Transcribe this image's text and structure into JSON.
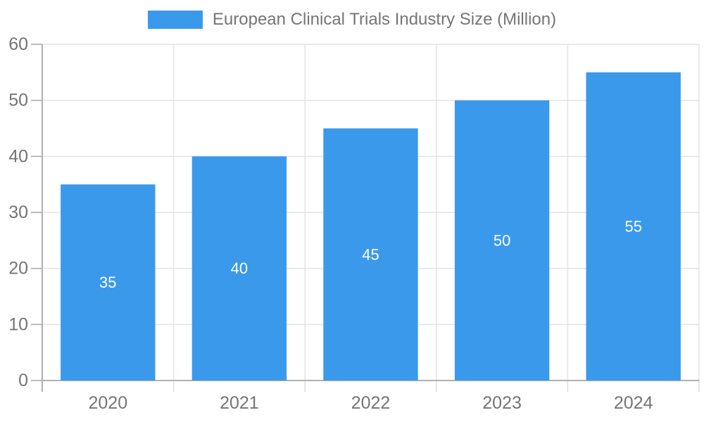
{
  "chart_data": {
    "type": "bar",
    "title": "European Clinical Trials Industry Size (Million)",
    "categories": [
      "2020",
      "2021",
      "2022",
      "2023",
      "2024"
    ],
    "series": [
      {
        "name": "European Clinical Trials Industry Size (Million)",
        "values": [
          35,
          40,
          45,
          50,
          55
        ]
      }
    ],
    "xlabel": "",
    "ylabel": "",
    "ylim": [
      0,
      60
    ],
    "yticks": [
      0,
      10,
      20,
      30,
      40,
      50,
      60
    ],
    "grid": true,
    "legend_position": "top-center",
    "bar_value_labels": [
      "35",
      "40",
      "45",
      "50",
      "55"
    ],
    "colors": {
      "bar": "#3b99ec",
      "grid": "#e4e4e4",
      "axis": "#b0b0b0",
      "y_tick": "#a6a6a6",
      "x_tick": "#dcdcdc",
      "tick_text": "#757575",
      "legend_text": "#757575",
      "bar_label_text": "#ffffff",
      "background": "#ffffff"
    }
  },
  "legend": {
    "label": "European Clinical Trials Industry Size (Million)"
  }
}
